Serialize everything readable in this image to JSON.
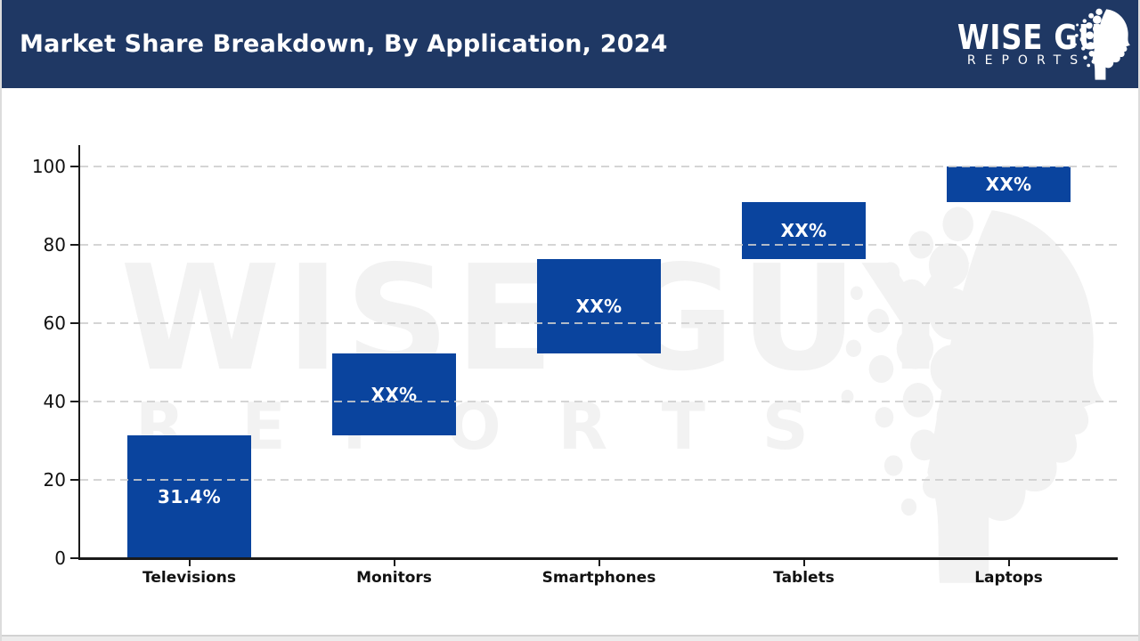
{
  "header": {
    "title": "Market Share Breakdown, By Application, 2024",
    "background_color": "#1f3864",
    "logo": {
      "line1": "WISE GUY",
      "line2": "REPORTS"
    }
  },
  "watermark": {
    "line1": "WISE GUY",
    "line2": "REPORTS"
  },
  "chart_data": {
    "type": "bar",
    "subtype": "waterfall",
    "title": "Market Share Breakdown, By Application, 2024",
    "xlabel": "",
    "ylabel": "",
    "categories": [
      "Televisions",
      "Monitors",
      "Smartphones",
      "Tablets",
      "Laptops"
    ],
    "segments": [
      {
        "category": "Televisions",
        "start": 0,
        "end": 31.4,
        "label": "31.4%"
      },
      {
        "category": "Monitors",
        "start": 31.4,
        "end": 52.3,
        "label": "XX%"
      },
      {
        "category": "Smartphones",
        "start": 52.3,
        "end": 76.4,
        "label": "XX%"
      },
      {
        "category": "Tablets",
        "start": 76.4,
        "end": 91.0,
        "label": "XX%"
      },
      {
        "category": "Laptops",
        "start": 91.0,
        "end": 100.0,
        "label": "XX%"
      }
    ],
    "y_ticks": [
      0,
      20,
      40,
      60,
      80,
      100
    ],
    "ylim": [
      0,
      105
    ],
    "grid": true,
    "grid_style": "dashed",
    "grid_on_top": true,
    "legend": false,
    "bar_color": "#0a449e",
    "label_color": "#ffffff",
    "axis_color": "#1a1a1a"
  }
}
